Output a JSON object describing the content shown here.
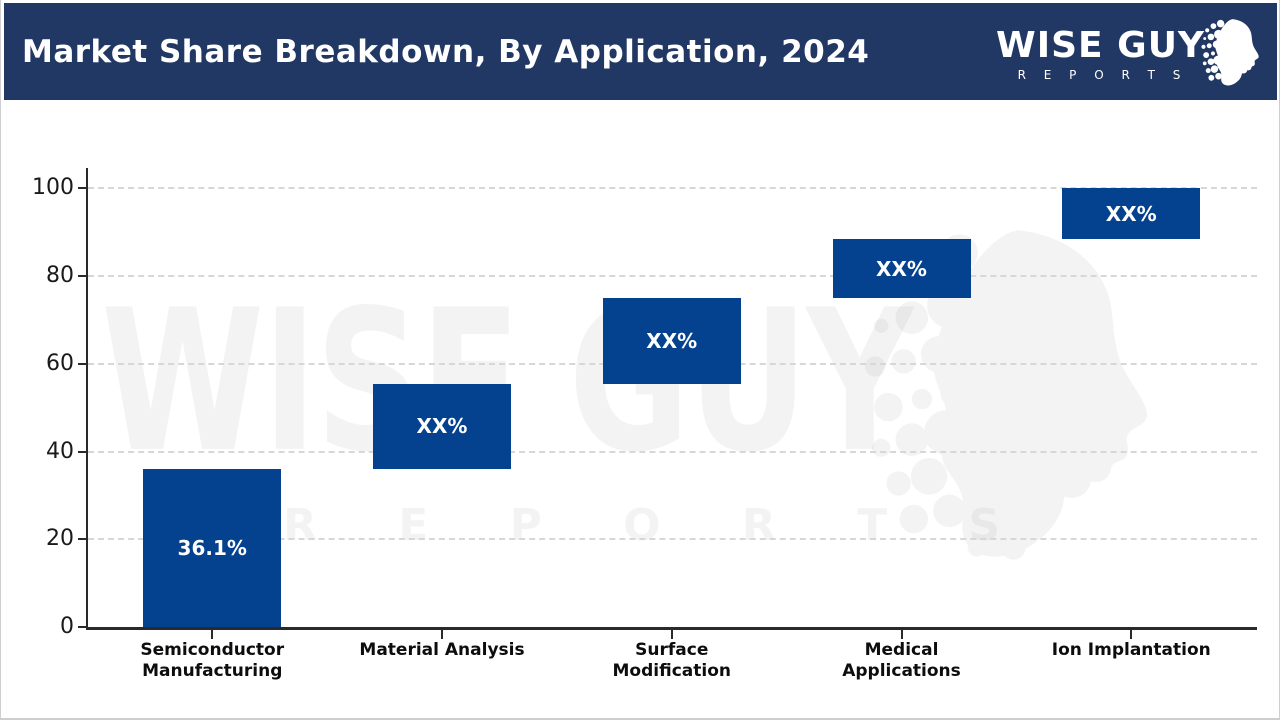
{
  "header": {
    "title": "Market Share Breakdown, By Application, 2024"
  },
  "logo": {
    "name": "WISE GUY",
    "subtitle": "R E P O R T S"
  },
  "watermark": {
    "name": "WISE GUY",
    "subtitle": "R E P O R T S"
  },
  "colors": {
    "header_bg": "#223864",
    "bar": "#04428f",
    "bar_label": "#ffffff",
    "axis": "#2a2a2a",
    "grid": "#d7d7d7",
    "tick_label": "#1a1a1a"
  },
  "chart_data": {
    "type": "bar",
    "subtype": "waterfall",
    "title": "Market Share Breakdown, By Application, 2024",
    "categories": [
      "Semiconductor\nManufacturing",
      "Material Analysis",
      "Surface\nModification",
      "Medical\nApplications",
      "Ion Implantation"
    ],
    "segments": [
      {
        "category": "Semiconductor Manufacturing",
        "start": 0,
        "end": 36.1,
        "label": "36.1%"
      },
      {
        "category": "Material Analysis",
        "start": 36.1,
        "end": 55.4,
        "label": "XX%"
      },
      {
        "category": "Surface Modification",
        "start": 55.4,
        "end": 75.0,
        "label": "XX%"
      },
      {
        "category": "Medical Applications",
        "start": 75.0,
        "end": 88.4,
        "label": "XX%"
      },
      {
        "category": "Ion Implantation",
        "start": 88.4,
        "end": 100.0,
        "label": "XX%"
      }
    ],
    "xlabel": "",
    "ylabel": "",
    "yticks": [
      0,
      20,
      40,
      60,
      80,
      100
    ],
    "ylim": [
      0,
      105
    ],
    "grid": "horizontal-dashed",
    "legend": null
  }
}
